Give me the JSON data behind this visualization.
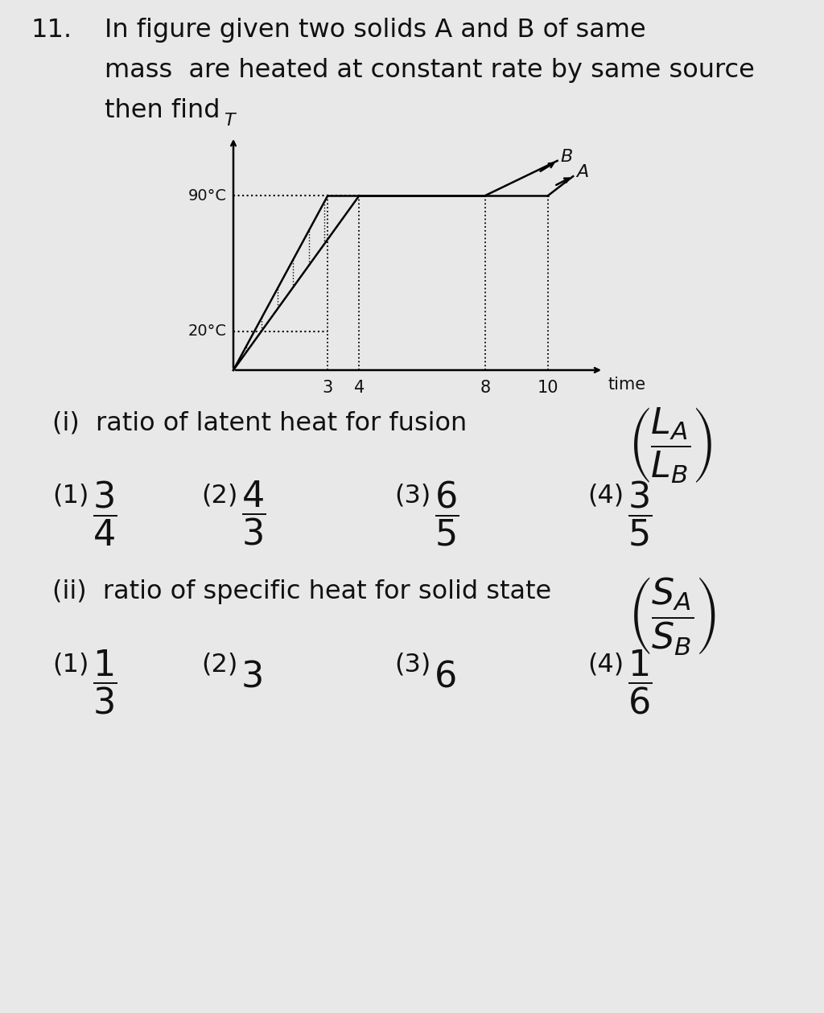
{
  "background_color": "#e8e8e8",
  "question_number": "11.",
  "question_lines": [
    "In figure given two solids A and B of same",
    "mass  are heated at constant rate by same source",
    "then find"
  ],
  "graph": {
    "x_ticks": [
      3,
      4,
      8,
      10
    ],
    "y_labels": [
      "20°C",
      "90°C"
    ],
    "y_values": [
      20,
      90
    ],
    "xlabel": "time",
    "ylabel": "T"
  },
  "part_i_text": "(i)  ratio of latent heat for fusion",
  "part_i_frac": "$\\left(\\dfrac{L_A}{L_B}\\right)$",
  "options_i": [
    "$\\dfrac{3}{4}$",
    "$\\dfrac{4}{3}$",
    "$\\dfrac{6}{5}$",
    "$\\dfrac{3}{5}$"
  ],
  "part_ii_text": "(ii)  ratio of specific heat for solid state",
  "part_ii_frac": "$\\left(\\dfrac{S_A}{S_B}\\right)$",
  "options_ii_text": [
    "$\\dfrac{1}{3}$",
    "3",
    "6",
    "$\\dfrac{1}{6}$"
  ],
  "option_nums": [
    "(1)",
    "(2)",
    "(3)",
    "(4)"
  ],
  "text_color": "#111111",
  "font_size_body": 23,
  "font_size_option": 28
}
